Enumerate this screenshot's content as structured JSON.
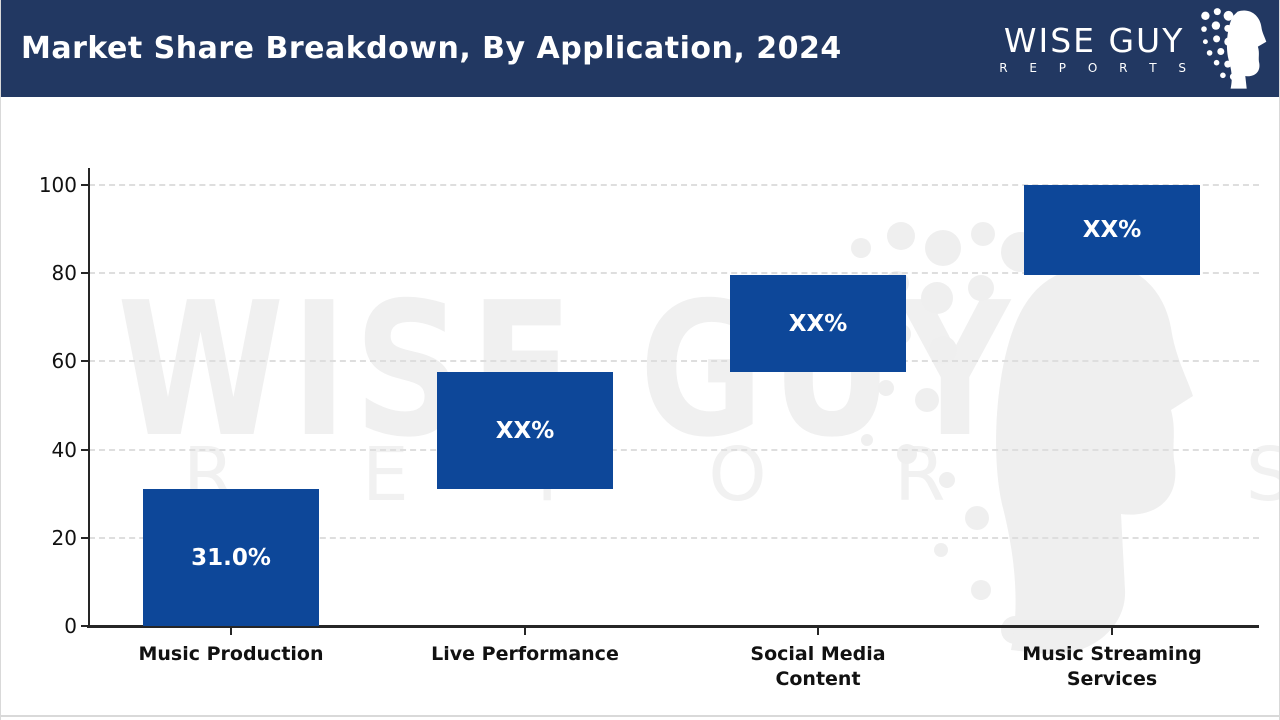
{
  "header": {
    "title": "Market Share Breakdown, By Application, 2024",
    "logo_line1": "WISE GUY",
    "logo_line2": "R E P O R T S"
  },
  "watermark": {
    "line1": "WISE GUY",
    "line2": "R E P O R T S"
  },
  "chart_data": {
    "type": "bar",
    "subtype": "floating-waterfall",
    "title": "Market Share Breakdown, By Application, 2024",
    "categories": [
      "Music Production",
      "Live Performance",
      "Social Media\nContent",
      "Music Streaming\nServices"
    ],
    "series": [
      {
        "name": "Market Share",
        "segments": [
          {
            "category": "Music Production",
            "start": 0,
            "end": 31,
            "label": "31.0%"
          },
          {
            "category": "Live Performance",
            "start": 31,
            "end": 57.5,
            "label": "XX%"
          },
          {
            "category": "Social Media Content",
            "start": 57.5,
            "end": 79.5,
            "label": "XX%"
          },
          {
            "category": "Music Streaming Services",
            "start": 79.5,
            "end": 100,
            "label": "XX%"
          }
        ]
      }
    ],
    "ylim": [
      0,
      100
    ],
    "yticks": [
      "0",
      "20",
      "40",
      "60",
      "80",
      "100"
    ],
    "xlabel": "",
    "ylabel": "",
    "legend": "none",
    "grid": "horizontal-dashed"
  },
  "colors": {
    "header_bg": "#223862",
    "bar": "#0d4799",
    "bar_label": "#ffffff",
    "gridline": "#dedede",
    "axis": "#262626",
    "watermark": "#efefef",
    "border": "#d9d9d9"
  }
}
